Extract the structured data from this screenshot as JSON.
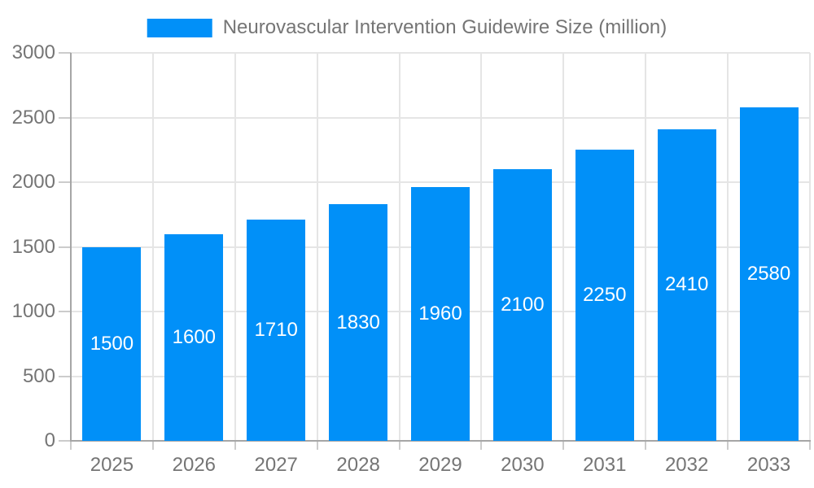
{
  "legend": {
    "label": "Neurovascular Intervention Guidewire Size (million)"
  },
  "chart_data": {
    "type": "bar",
    "title": "",
    "xlabel": "",
    "ylabel": "",
    "categories": [
      "2025",
      "2026",
      "2027",
      "2028",
      "2029",
      "2030",
      "2031",
      "2032",
      "2033"
    ],
    "values": [
      1500,
      1600,
      1710,
      1830,
      1960,
      2100,
      2250,
      2410,
      2580
    ],
    "series_name": "Neurovascular Intervention Guidewire Size (million)",
    "bar_labels": [
      "1500",
      "1600",
      "1710",
      "1830",
      "1960",
      "2100",
      "2250",
      "2410",
      "2580"
    ],
    "ylim": [
      0,
      3000
    ],
    "yticks": [
      0,
      500,
      1000,
      1500,
      2000,
      2500,
      3000
    ],
    "grid": true,
    "legend_position": "top-center",
    "colors": {
      "bar": "#0190F8",
      "bar_label": "#FFFFFF",
      "grid": "#E5E5E5",
      "axis": "#A6A6A6",
      "tick": "#CCCCCC",
      "text": "#757575",
      "background": "#FFFFFF"
    }
  }
}
